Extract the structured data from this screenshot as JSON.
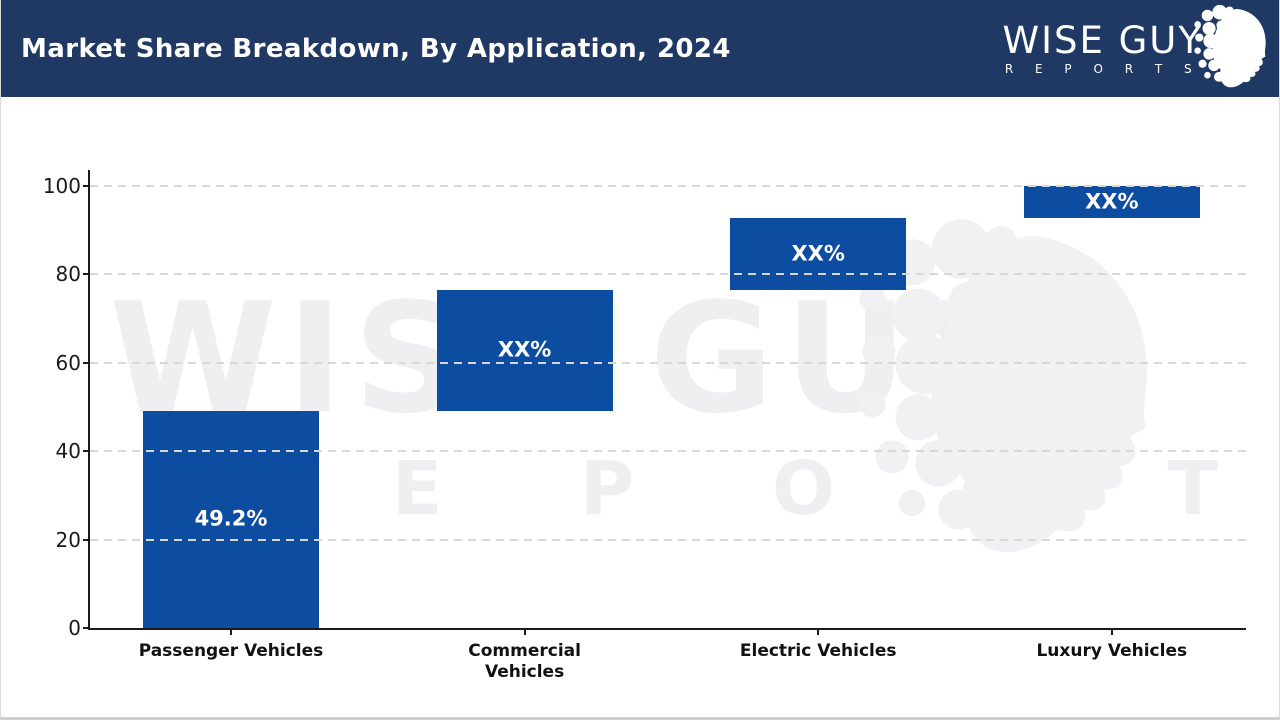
{
  "header": {
    "title": "Market Share Breakdown, By Application, 2024",
    "logo": {
      "line1": "WISE GUY",
      "line2": "R E P O R T S"
    }
  },
  "watermark": {
    "line1": "WISE GUY",
    "line2": "R E P O R T S"
  },
  "chart_data": {
    "type": "bar",
    "subtype": "waterfall",
    "title": "Market Share Breakdown, By Application, 2024",
    "categories": [
      "Passenger Vehicles",
      "Commercial\nVehicles",
      "Electric Vehicles",
      "Luxury Vehicles"
    ],
    "segments": [
      {
        "category": "Passenger Vehicles",
        "start": 0,
        "end": 49.2,
        "label": "49.2%"
      },
      {
        "category": "Commercial Vehicles",
        "start": 49.2,
        "end": 76.5,
        "label": "XX%"
      },
      {
        "category": "Electric Vehicles",
        "start": 76.5,
        "end": 92.8,
        "label": "XX%"
      },
      {
        "category": "Luxury Vehicles",
        "start": 92.8,
        "end": 100,
        "label": "XX%"
      }
    ],
    "ylim": [
      0,
      100
    ],
    "yticks": [
      "0",
      "20",
      "40",
      "60",
      "80",
      "100"
    ],
    "grid": true,
    "legend": false,
    "colors": {
      "bar": "#0c4da2",
      "bar_label": "#ffffff",
      "header_bg": "#1f3864",
      "grid": "#d9d9d9",
      "axis": "#1a1a1a",
      "watermark": "#f0f0f2"
    }
  }
}
